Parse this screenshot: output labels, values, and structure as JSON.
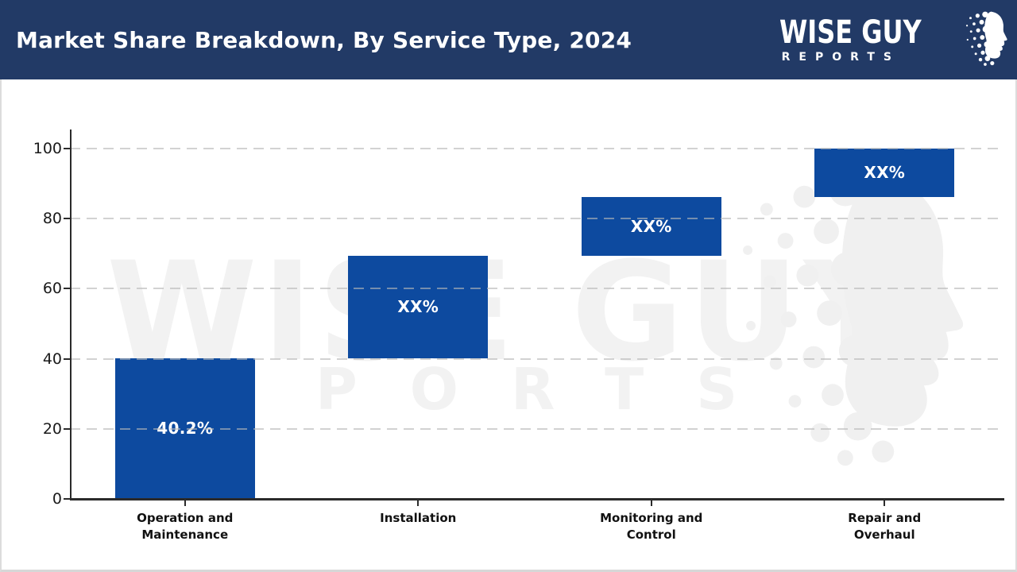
{
  "header": {
    "title": "Market Share Breakdown, By Service Type, 2024",
    "background_color": "#223a66",
    "logo": {
      "name": "WISE GUY",
      "subtitle": "REPORTS"
    }
  },
  "watermark": {
    "line1": "WISE GUY",
    "line2": "PORTS"
  },
  "chart_data": {
    "type": "bar",
    "subtype": "waterfall",
    "title": "Market Share Breakdown, By Service Type, 2024",
    "categories": [
      "Operation and Maintenance",
      "Installation",
      "Monitoring and Control",
      "Repair and Overhaul"
    ],
    "category_display": [
      [
        "Operation and",
        "Maintenance"
      ],
      [
        "Installation"
      ],
      [
        "Monitoring and",
        "Control"
      ],
      [
        "Repair and",
        "Overhaul"
      ]
    ],
    "segments": [
      {
        "category": "Operation and Maintenance",
        "start": 0,
        "end": 40.2,
        "label": "40.2%"
      },
      {
        "category": "Installation",
        "start": 40.2,
        "end": 69.4,
        "label": "XX%"
      },
      {
        "category": "Monitoring and Control",
        "start": 69.4,
        "end": 86.2,
        "label": "XX%"
      },
      {
        "category": "Repair and Overhaul",
        "start": 86.2,
        "end": 100,
        "label": "XX%"
      }
    ],
    "xlabel": "",
    "ylabel": "",
    "ylim": [
      0,
      100
    ],
    "yticks": [
      0,
      20,
      40,
      60,
      80,
      100
    ],
    "grid": "horizontal-dashed",
    "legend": null,
    "bar_color": "#0d4a9f",
    "bar_label_color": "#ffffff",
    "axis_color": "#2b2b2b"
  }
}
